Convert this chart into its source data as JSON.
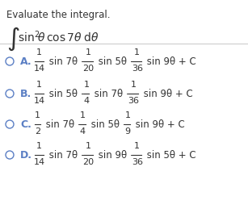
{
  "title": "Evaluate the integral.",
  "background_color": "#ffffff",
  "text_color": "#333333",
  "option_color": "#5b7fc4",
  "title_fontsize": 8.5,
  "integral_fontsize": 10,
  "option_fontsize": 8.5,
  "options": [
    {
      "label": "A."
    },
    {
      "label": "B."
    },
    {
      "label": "C."
    },
    {
      "label": "D."
    }
  ]
}
